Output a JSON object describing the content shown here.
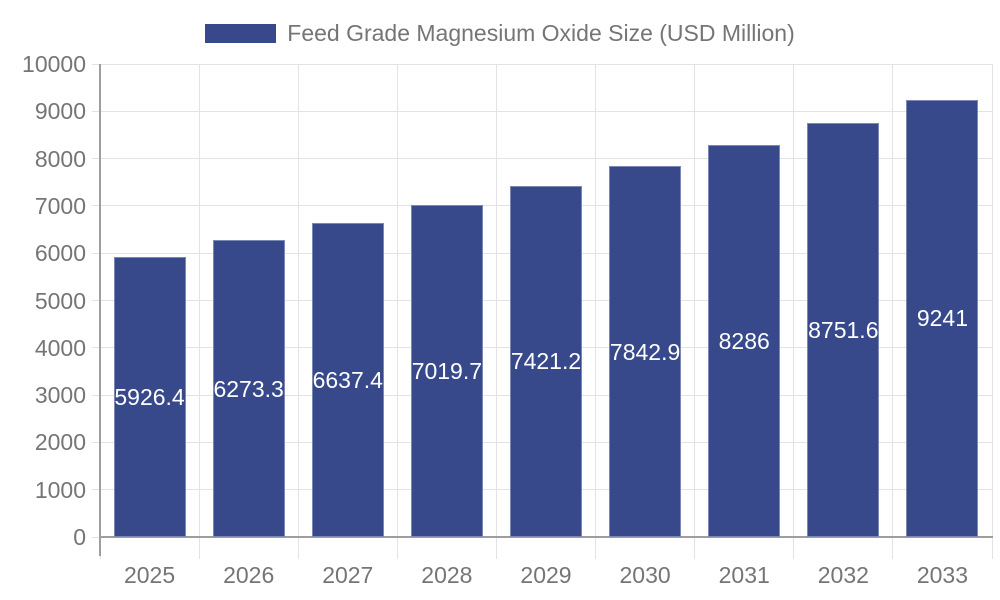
{
  "chart_data": {
    "type": "bar",
    "title": "Feed Grade Magnesium Oxide Size (USD Million)",
    "legend": {
      "position": "top",
      "label": "Feed Grade Magnesium Oxide Size (USD Million)"
    },
    "categories": [
      "2025",
      "2026",
      "2027",
      "2028",
      "2029",
      "2030",
      "2031",
      "2032",
      "2033"
    ],
    "values": [
      5926.4,
      6273.3,
      6637.4,
      7019.7,
      7421.2,
      7842.9,
      8286,
      8751.6,
      9241
    ],
    "value_labels": [
      "5926.4",
      "6273.3",
      "6637.4",
      "7019.7",
      "7421.2",
      "7842.9",
      "8286",
      "8751.6",
      "9241"
    ],
    "xlabel": "",
    "ylabel": "",
    "ylim": [
      0,
      10000
    ],
    "y_ticks": [
      0,
      1000,
      2000,
      3000,
      4000,
      5000,
      6000,
      7000,
      8000,
      9000,
      10000
    ],
    "y_tick_labels": [
      "0",
      "1000",
      "2000",
      "3000",
      "4000",
      "5000",
      "6000",
      "7000",
      "8000",
      "9000",
      "10000"
    ],
    "grid": true,
    "colors": {
      "bar": "#37498A",
      "axis": "#9E9E9E",
      "grid": "#E3E3E3",
      "axis_text": "#757575",
      "value_text": "#FFFFFF",
      "background": "#FFFFFF"
    }
  }
}
